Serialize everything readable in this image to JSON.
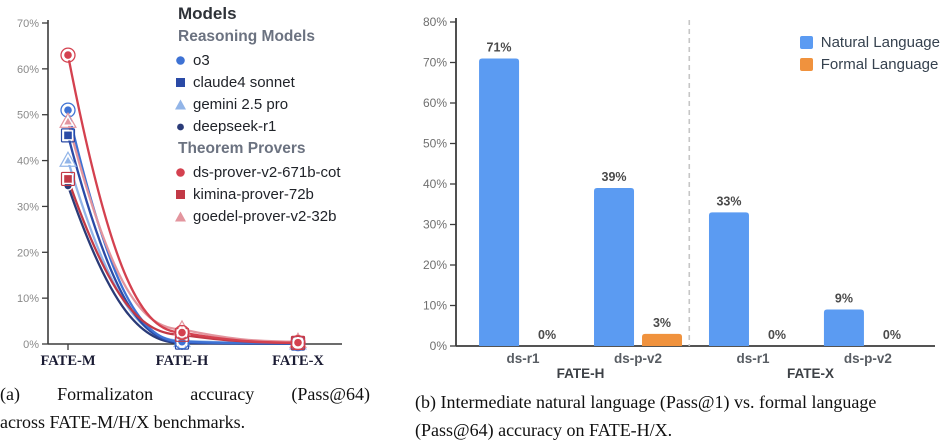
{
  "figure_a": {
    "caption": {
      "line1": "(a) Formalizaton accuracy (Pass@64)",
      "line2": "across FATE-M/H/X benchmarks."
    },
    "legend": {
      "title": "Models",
      "groups": [
        {
          "heading": "Reasoning Models",
          "items": [
            "o3",
            "claude4 sonnet",
            "gemini 2.5 pro",
            "deepseek-r1"
          ]
        },
        {
          "heading": "Theorem Provers",
          "items": [
            "ds-prover-v2-671b-cot",
            "kimina-prover-72b",
            "goedel-prover-v2-32b"
          ]
        }
      ]
    }
  },
  "figure_b": {
    "caption": {
      "line1": "(b) Intermediate natural language (Pass@1) vs. formal language",
      "line2": "(Pass@64) accuracy on FATE-H/X."
    }
  },
  "chart_data": [
    {
      "type": "line",
      "title": "",
      "categories": [
        "FATE-M",
        "FATE-H",
        "FATE-X"
      ],
      "series": [
        {
          "name": "o3",
          "group": "Reasoning Models",
          "marker": "circle",
          "color": "#3e72d4",
          "values": [
            51,
            0.5,
            0.1
          ]
        },
        {
          "name": "claude4 sonnet",
          "group": "Reasoning Models",
          "marker": "square",
          "color": "#2a4aa6",
          "values": [
            45.5,
            0.3,
            0.1
          ]
        },
        {
          "name": "gemini 2.5 pro",
          "group": "Reasoning Models",
          "marker": "triangle",
          "color": "#92b5e8",
          "values": [
            40,
            0.7,
            0.15
          ]
        },
        {
          "name": "deepseek-r1",
          "group": "Reasoning Models",
          "marker": "dot",
          "color": "#2a3b78",
          "values": [
            34.5,
            0.2,
            0.05
          ]
        },
        {
          "name": "ds-prover-v2-671b-cot",
          "group": "Theorem Provers",
          "marker": "circle",
          "color": "#d4414f",
          "values": [
            63,
            2.5,
            0.3
          ]
        },
        {
          "name": "kimina-prover-72b",
          "group": "Theorem Provers",
          "marker": "square",
          "color": "#c23946",
          "values": [
            36,
            2,
            0.25
          ]
        },
        {
          "name": "goedel-prover-v2-32b",
          "group": "Theorem Provers",
          "marker": "triangle",
          "color": "#e3959e",
          "values": [
            48.5,
            3.2,
            0.5
          ]
        }
      ],
      "xlabel": "",
      "ylabel": "",
      "ylim": [
        0,
        70
      ],
      "ytick_step": 10,
      "ytick_suffix": "%",
      "grid": false,
      "legend_position": "top-right-inside"
    },
    {
      "type": "bar",
      "title": "",
      "categories": [
        "ds-r1",
        "ds-p-v2",
        "ds-r1",
        "ds-p-v2"
      ],
      "group_labels": [
        "FATE-H",
        "FATE-X"
      ],
      "divider_after_category": 2,
      "series": [
        {
          "name": "Natural Language",
          "color": "#5b9bf2",
          "values": [
            71,
            39,
            33,
            9
          ]
        },
        {
          "name": "Formal Language",
          "color": "#f0923d",
          "values": [
            0,
            3,
            0,
            0
          ]
        }
      ],
      "bar_labels": [
        [
          "71%",
          "39%",
          "33%",
          "9%"
        ],
        [
          "0%",
          "3%",
          "0%",
          "0%"
        ]
      ],
      "xlabel": "",
      "ylabel": "",
      "ylim": [
        0,
        80
      ],
      "ytick_step": 10,
      "ytick_suffix": "%",
      "grid": false,
      "legend_position": "top-right"
    }
  ],
  "style": {
    "axis_color": "#3c3c3c",
    "divider_color": "#c6c6c6",
    "background": "#ffffff"
  }
}
